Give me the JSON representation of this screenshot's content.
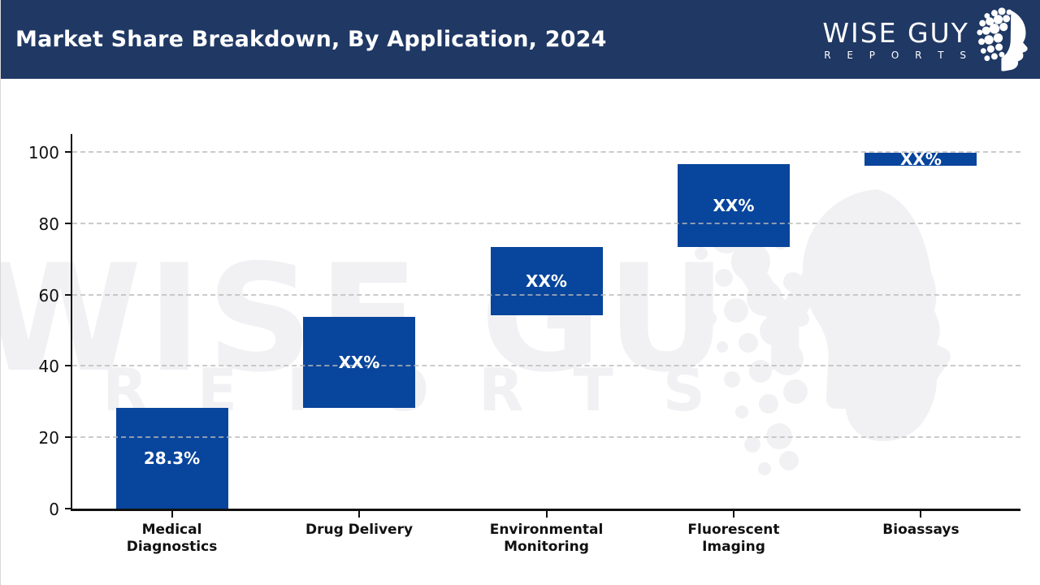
{
  "header": {
    "title": "Market Share Breakdown, By Application, 2024",
    "logo": {
      "name": "WISE GUY",
      "sub": "R E P O R T S"
    }
  },
  "watermark": {
    "line1": "WISE GUY",
    "line2": "R E P O R T S"
  },
  "colors": {
    "header_bg": "#1f3864",
    "bar": "#08459c",
    "bar_label": "#ffffff",
    "grid": "#bcbcbc",
    "axis": "#111111",
    "watermark": "#f1f1f4",
    "title_text": "#ffffff"
  },
  "chart_data": {
    "type": "bar",
    "subtype": "waterfall",
    "title": "Market Share Breakdown, By Application, 2024",
    "categories": [
      "Medical Diagnostics",
      "Drug Delivery",
      "Environmental Monitoring",
      "Fluorescent Imaging",
      "Bioassays"
    ],
    "category_lines": [
      [
        "Medical",
        "Diagnostics"
      ],
      [
        "Drug Delivery"
      ],
      [
        "Environmental",
        "Monitoring"
      ],
      [
        "Fluorescent",
        "Imaging"
      ],
      [
        "Bioassays"
      ]
    ],
    "segments": [
      {
        "category": "Medical Diagnostics",
        "start": 0,
        "end": 28.3,
        "label": "28.3%"
      },
      {
        "category": "Drug Delivery",
        "start": 28.3,
        "end": 53.8,
        "label": "XX%"
      },
      {
        "category": "Environmental Monitoring",
        "start": 54.2,
        "end": 73.3,
        "label": "XX%"
      },
      {
        "category": "Fluorescent Imaging",
        "start": 73.4,
        "end": 96.5,
        "label": "XX%"
      },
      {
        "category": "Bioassays",
        "start": 96.2,
        "end": 99.8,
        "label": "XX%"
      }
    ],
    "xlabel": "",
    "ylabel": "",
    "yticks": [
      0,
      20,
      40,
      60,
      80,
      100
    ],
    "ylim": [
      0,
      105
    ],
    "grid": "horizontal-dashed",
    "legend": null
  }
}
